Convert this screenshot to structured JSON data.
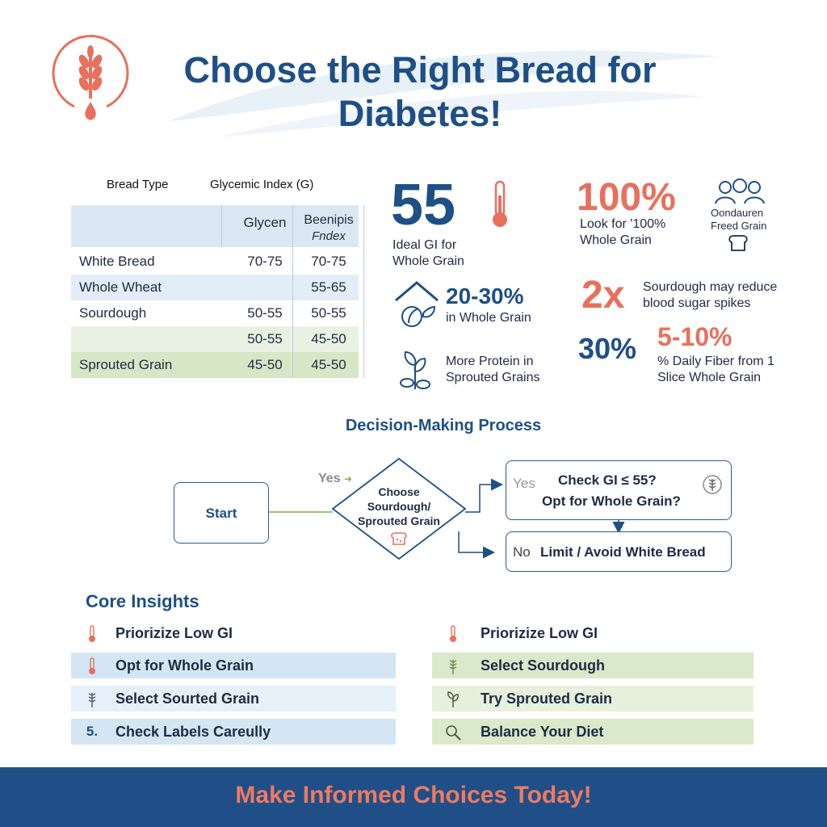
{
  "header": {
    "title_line1": "Choose the Right Bread for",
    "title_line2": "Diabetes!"
  },
  "table": {
    "col_header_type": "Bread Type",
    "col_header_gi": "Glycemic Index (G)",
    "sub_header_col2": "Glycen",
    "sub_header_col3_line1": "Beenipis",
    "sub_header_col3_line2": "Fndex",
    "rows": [
      {
        "name": "White Bread",
        "v1": "70-75",
        "v2": "70-75"
      },
      {
        "name": "Whole Wheat",
        "v1": "",
        "v2": "55-65"
      },
      {
        "name": "Sourdough",
        "v1": "50-55",
        "v2": "50-55"
      },
      {
        "name": "",
        "v1": "50-55",
        "v2": "45-50"
      },
      {
        "name": "Sprouted Grain",
        "v1": "45-50",
        "v2": "45-50"
      }
    ]
  },
  "stats": {
    "s1_value": "55",
    "s1_line1": "Ideal GI for",
    "s1_line2": "Whole Grain",
    "s2_value": "100%",
    "s2_line1": "Look for '100%",
    "s2_line2": "Whole Grain",
    "s3_line1": "Oondauren",
    "s3_line2": "Freed Grain",
    "s4_value": "20-30%",
    "s4_line1": "in Whole Grain",
    "s5_value": "2x",
    "s5_line1": "Sourdough may reduce",
    "s5_line2": "blood sugar spikes",
    "s6_line1": "More Protein in",
    "s6_line2": "Sprouted Grains",
    "s7_value": "30%",
    "s8_value": "5-10%",
    "s8_line1": "% Daily Fiber from 1",
    "s8_line2": "Slice Whole Grain"
  },
  "flow": {
    "heading": "Decision-Making Process",
    "start": "Start",
    "yes_left": "Yes",
    "diamond_line1": "Choose",
    "diamond_line2": "Sourdough/",
    "diamond_line3": "Sprouted Grain",
    "yes_right": "Yes",
    "box1_line1": "Check GI ≤ 55?",
    "box1_line2": "Opt for Whole Grain?",
    "no_label": "No",
    "box2_text": "Limit / Avoid White Bread"
  },
  "insights": {
    "heading": "Core Insights",
    "left": [
      {
        "label": "Priorizize Low GI",
        "icon": "thermometer-icon"
      },
      {
        "label": "Opt for Whole Grain",
        "icon": "thermometer-icon"
      },
      {
        "label": "Select Sourted Grain",
        "icon": "wheat-icon"
      },
      {
        "label": "Check Labels Careully",
        "icon": "number-5",
        "marker": "5."
      }
    ],
    "right": [
      {
        "label": "Priorizize Low GI",
        "icon": "thermometer-icon"
      },
      {
        "label": "Select Sourdough",
        "icon": "wheat-icon"
      },
      {
        "label": "Try Sprouted Grain",
        "icon": "sprout-icon"
      },
      {
        "label": "Balance Your Diet",
        "icon": "magnifier-icon"
      }
    ]
  },
  "footer": {
    "text": "Make Informed Choices Today!"
  },
  "colors": {
    "navy": "#1e4f86",
    "coral": "#e8705c",
    "table_blue": "#dbe8f4",
    "table_green": "#e5efdc",
    "table_green_dark": "#d6e7c6",
    "insight_blue": "#d4e6f3",
    "insight_green": "#d9e9c9",
    "footer_bg": "#1f4f86"
  }
}
